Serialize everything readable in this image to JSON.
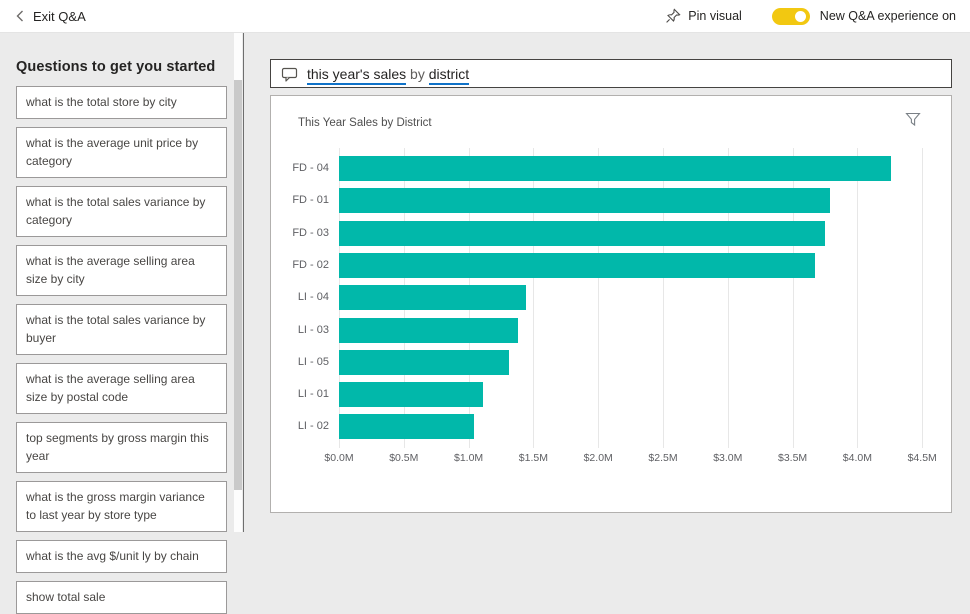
{
  "topbar": {
    "back_label": "Exit Q&A",
    "pin_label": "Pin visual",
    "toggle_label": "New Q&A experience on",
    "toggle_on": true
  },
  "sidebar": {
    "heading": "Questions to get you started",
    "questions": [
      "what is the total store by city",
      "what is the average unit price by category",
      "what is the total sales variance by category",
      "what is the average selling area size by city",
      "what is the total sales variance by buyer",
      "what is the average selling area size by postal code",
      "top segments by gross margin this year",
      "what is the gross margin variance to last year by store type",
      "what is the avg $/unit ly by chain",
      "show total sale"
    ]
  },
  "qna": {
    "segments": [
      {
        "text": "this year's sales",
        "underline": true
      },
      {
        "text": "by",
        "underline": false
      },
      {
        "text": "district",
        "underline": true
      }
    ]
  },
  "chart_data": {
    "type": "bar",
    "orientation": "horizontal",
    "title": "This Year Sales by District",
    "categories": [
      "FD - 04",
      "FD - 01",
      "FD - 03",
      "FD - 02",
      "LI - 04",
      "LI - 03",
      "LI - 05",
      "LI - 01",
      "LI - 02"
    ],
    "values": [
      4.26,
      3.79,
      3.75,
      3.67,
      1.44,
      1.38,
      1.31,
      1.11,
      1.04
    ],
    "value_unit": "$M",
    "x_tick_labels": [
      "$0.0M",
      "$0.5M",
      "$1.0M",
      "$1.5M",
      "$2.0M",
      "$2.5M",
      "$3.0M",
      "$3.5M",
      "$4.0M",
      "$4.5M"
    ],
    "xlim": [
      0,
      4.5
    ],
    "grid": true,
    "bar_color": "#01b8aa"
  },
  "colors": {
    "bar_teal": "#01b8aa",
    "toggle_on_yellow": "#f2c811",
    "term_underline_blue": "#0f72c8",
    "background_gray": "#ebebeb"
  }
}
